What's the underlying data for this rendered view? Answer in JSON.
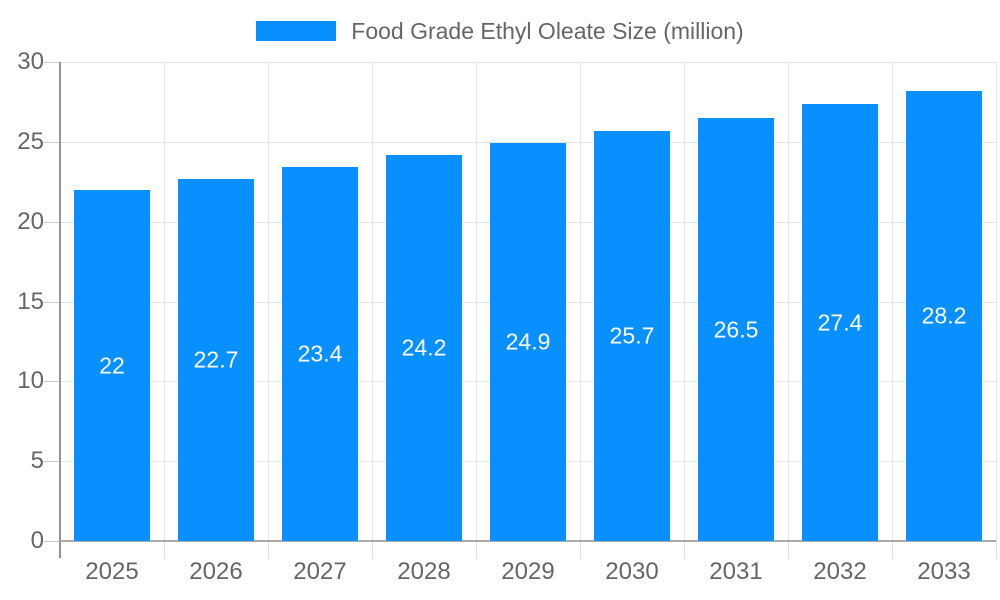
{
  "chart_data": {
    "type": "bar",
    "title": "Food Grade Ethyl Oleate Size (million)",
    "categories": [
      "2025",
      "2026",
      "2027",
      "2028",
      "2029",
      "2030",
      "2031",
      "2032",
      "2033"
    ],
    "values": [
      22,
      22.7,
      23.4,
      24.2,
      24.9,
      25.7,
      26.5,
      27.4,
      28.2
    ],
    "value_labels": [
      "22",
      "22.7",
      "23.4",
      "24.2",
      "24.9",
      "25.7",
      "26.5",
      "27.4",
      "28.2"
    ],
    "xlabel": "",
    "ylabel": "",
    "ylim": [
      0,
      30
    ],
    "yticks": [
      0,
      5,
      10,
      15,
      20,
      25,
      30
    ],
    "ytick_labels": [
      "0",
      "5",
      "10",
      "15",
      "20",
      "25",
      "30"
    ],
    "grid": "on",
    "legend_position": "top-center",
    "colors": {
      "bar": "#0890FF",
      "bar_value_text": "#FFFFFF",
      "axis_text": "#666666",
      "legend_text": "#666666",
      "gridline": "#E6E6E6",
      "x_axis_line": "#AAAAAA",
      "y_axis_line": "#949494",
      "y_tick": "#CCCCCC",
      "x_tick": "#E0E0E0",
      "background": "#FFFFFF"
    }
  }
}
